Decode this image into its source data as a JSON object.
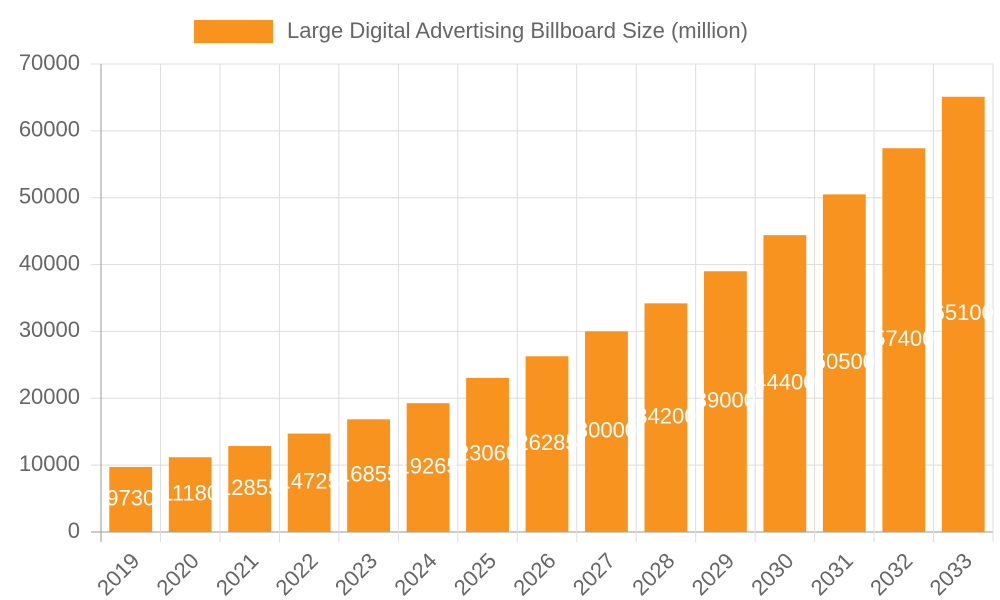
{
  "chart_data": {
    "type": "bar",
    "categories": [
      "2019",
      "2020",
      "2021",
      "2022",
      "2023",
      "2024",
      "2025",
      "2026",
      "2027",
      "2028",
      "2029",
      "2030",
      "2031",
      "2032",
      "2033"
    ],
    "series": [
      {
        "name": "Large Digital Advertising Billboard Size (million)",
        "color": "#f7931e",
        "values": [
          9730,
          11180,
          12855,
          14725,
          16855,
          19265,
          23060,
          26285,
          30000,
          34200,
          39000,
          44400,
          50500,
          57400,
          65100
        ]
      }
    ],
    "ylim": [
      0,
      70000
    ],
    "yticks": [
      0,
      10000,
      20000,
      30000,
      40000,
      50000,
      60000,
      70000
    ],
    "grid": true,
    "legend": "top"
  }
}
